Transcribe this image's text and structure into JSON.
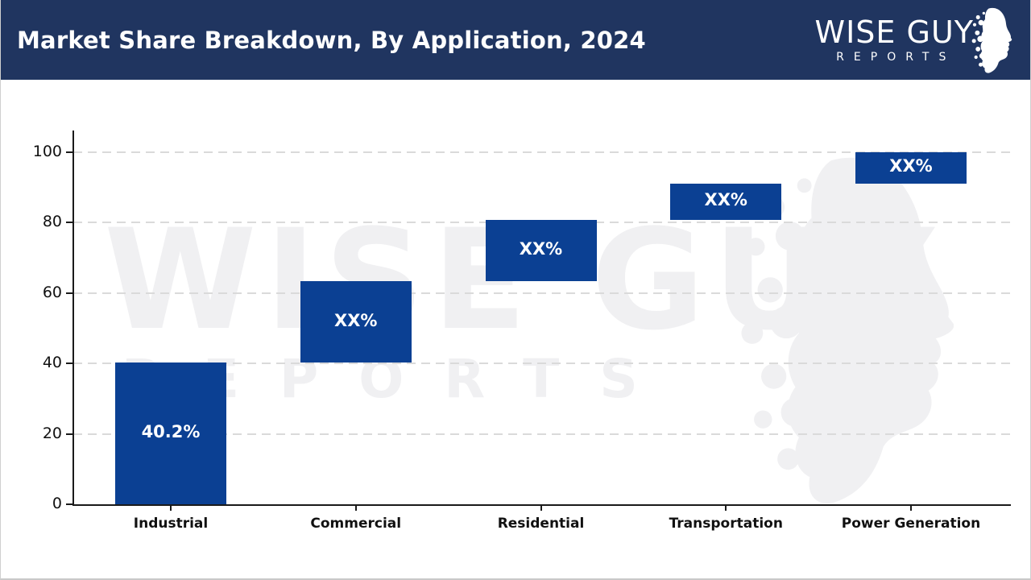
{
  "header": {
    "title": "Market Share Breakdown, By Application, 2024",
    "logo": {
      "line1": "WISE GUY",
      "line2": "REPORTS"
    }
  },
  "watermark": {
    "line1": "WISE GUY",
    "line2": "REPORTS"
  },
  "colors": {
    "header_bg": "#203560",
    "bar": "#0b4093",
    "grid": "#dadada",
    "axis": "#1a1a1a",
    "bar_label": "#ffffff",
    "watermark": "#f0f0f2"
  },
  "icons": {
    "brand_face": "dotted-head-profile-icon"
  },
  "chart_data": {
    "type": "bar",
    "subtype": "waterfall",
    "title": "Market Share Breakdown, By Application, 2024",
    "xlabel": "",
    "ylabel": "",
    "categories": [
      "Industrial",
      "Commercial",
      "Residential",
      "Transportation",
      "Power Generation"
    ],
    "segments": [
      {
        "category": "Industrial",
        "start": 0,
        "end": 40.2,
        "label": "40.2%"
      },
      {
        "category": "Commercial",
        "start": 40.2,
        "end": 63.3,
        "label": "XX%"
      },
      {
        "category": "Residential",
        "start": 63.3,
        "end": 80.7,
        "label": "XX%"
      },
      {
        "category": "Transportation",
        "start": 80.7,
        "end": 91.0,
        "label": "XX%"
      },
      {
        "category": "Power Generation",
        "start": 91.0,
        "end": 100.0,
        "label": "XX%"
      }
    ],
    "yticks": [
      0,
      20,
      40,
      60,
      80,
      100
    ],
    "ylim": [
      0,
      106
    ],
    "grid": "horizontal-dashed",
    "legend": "none",
    "bar_color": "#0b4093"
  }
}
